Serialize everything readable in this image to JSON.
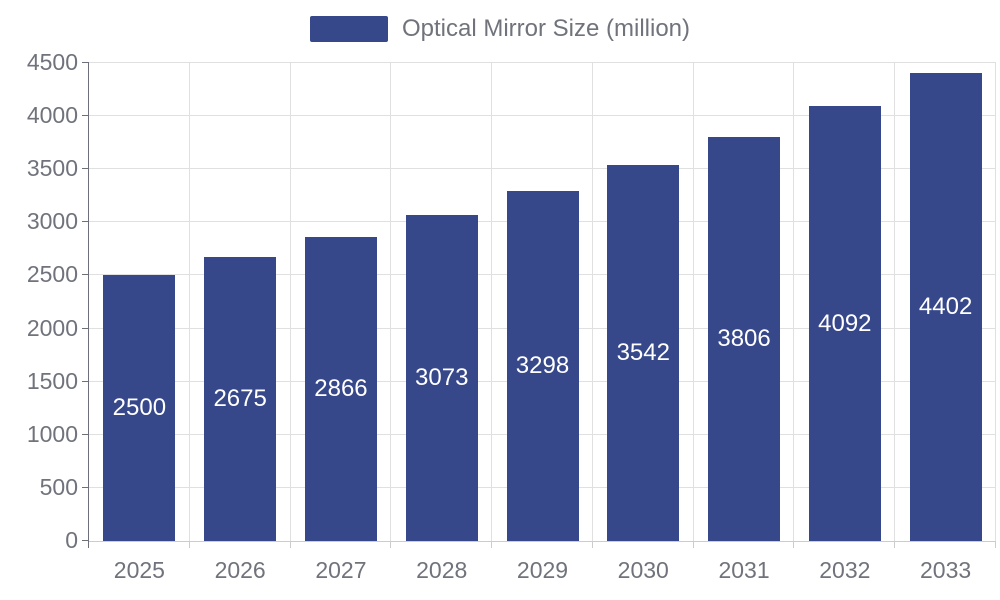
{
  "chart_data": {
    "type": "bar",
    "legend": "Optical Mirror Size (million)",
    "categories": [
      "2025",
      "2026",
      "2027",
      "2028",
      "2029",
      "2030",
      "2031",
      "2032",
      "2033"
    ],
    "values": [
      2500,
      2675,
      2866,
      3073,
      3298,
      3542,
      3806,
      4092,
      4402
    ],
    "title": "",
    "xlabel": "",
    "ylabel": "",
    "ylim": [
      0,
      4500
    ],
    "yticks": [
      0,
      500,
      1000,
      1500,
      2000,
      2500,
      3000,
      3500,
      4000,
      4500
    ],
    "grid": true,
    "legend_position": "top",
    "colors": {
      "bar": "#36478A",
      "value_label": "#FFFFFF",
      "axis_text": "#70737B",
      "axis_line": "#6E7079",
      "grid_line": "#E0E0E0",
      "x_axis_line": "#CCCCCC",
      "background": "#FFFFFF"
    }
  }
}
